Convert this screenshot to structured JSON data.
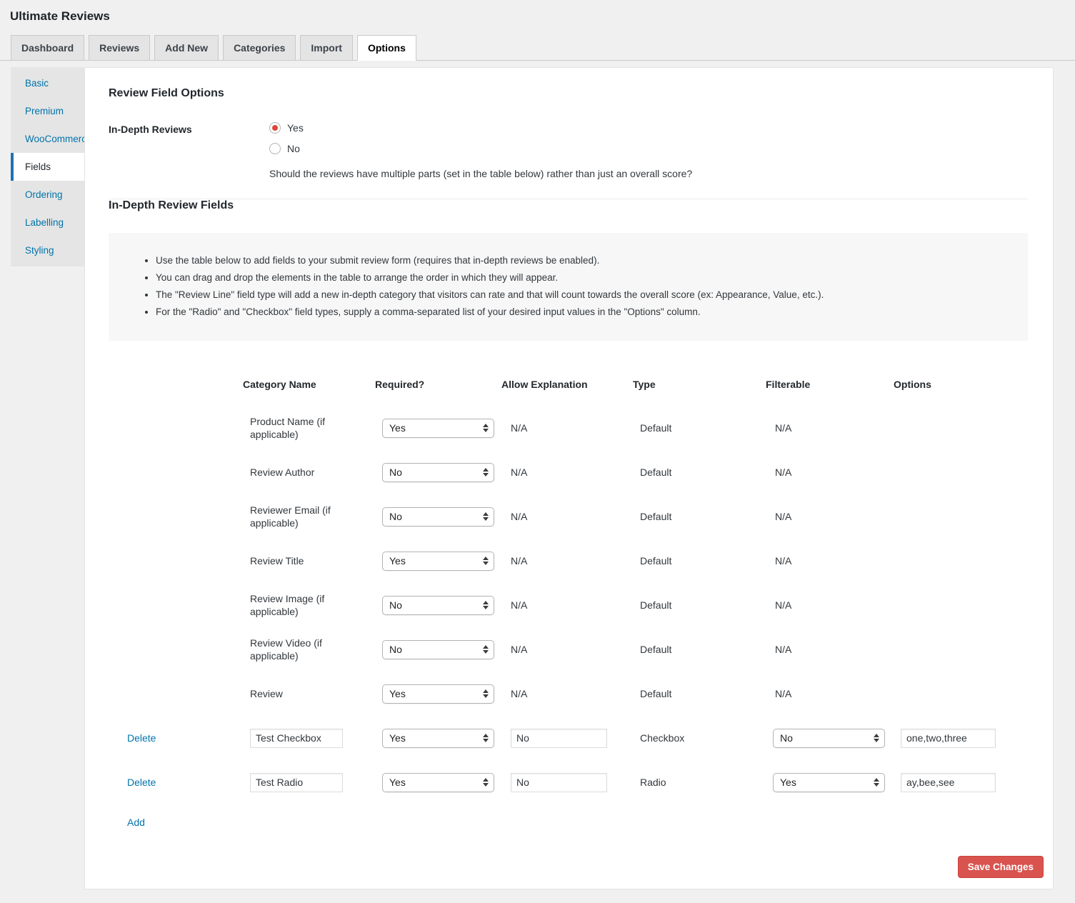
{
  "page_title": "Ultimate Reviews",
  "tabs": [
    {
      "label": "Dashboard",
      "active": false
    },
    {
      "label": "Reviews",
      "active": false
    },
    {
      "label": "Add New",
      "active": false
    },
    {
      "label": "Categories",
      "active": false
    },
    {
      "label": "Import",
      "active": false
    },
    {
      "label": "Options",
      "active": true
    }
  ],
  "sidebar": {
    "items": [
      {
        "label": "Basic",
        "active": false
      },
      {
        "label": "Premium",
        "active": false
      },
      {
        "label": "WooCommerce",
        "active": false
      },
      {
        "label": "Fields",
        "active": true
      },
      {
        "label": "Ordering",
        "active": false
      },
      {
        "label": "Labelling",
        "active": false
      },
      {
        "label": "Styling",
        "active": false
      }
    ]
  },
  "review_field_options": {
    "title": "Review Field Options",
    "in_depth_reviews": {
      "label": "In-Depth Reviews",
      "options": [
        "Yes",
        "No"
      ],
      "selected": "Yes",
      "description": "Should the reviews have multiple parts (set in the table below) rather than just an overall score?"
    }
  },
  "in_depth_review_fields": {
    "title": "In-Depth Review Fields",
    "notes": [
      "Use the table below to add fields to your submit review form (requires that in-depth reviews be enabled).",
      "You can drag and drop the elements in the table to arrange the order in which they will appear.",
      "The \"Review Line\" field type will add a new in-depth category that visitors can rate and that will count towards the overall score (ex: Appearance, Value, etc.).",
      "For the \"Radio\" and \"Checkbox\" field types, supply a comma-separated list of your desired input values in the \"Options\" column."
    ]
  },
  "table": {
    "headers": {
      "name": "Category Name",
      "required": "Required?",
      "allow": "Allow Explanation",
      "type": "Type",
      "filterable": "Filterable",
      "options": "Options"
    },
    "delete_label": "Delete",
    "add_label": "Add",
    "rows": [
      {
        "name": "Product Name (if applicable)",
        "required": "Yes",
        "allow": "N/A",
        "type": "Default",
        "filterable": "N/A",
        "options": ""
      },
      {
        "name": "Review Author",
        "required": "No",
        "allow": "N/A",
        "type": "Default",
        "filterable": "N/A",
        "options": ""
      },
      {
        "name": "Reviewer Email (if applicable)",
        "required": "No",
        "allow": "N/A",
        "type": "Default",
        "filterable": "N/A",
        "options": ""
      },
      {
        "name": "Review Title",
        "required": "Yes",
        "allow": "N/A",
        "type": "Default",
        "filterable": "N/A",
        "options": ""
      },
      {
        "name": "Review Image (if applicable)",
        "required": "No",
        "allow": "N/A",
        "type": "Default",
        "filterable": "N/A",
        "options": ""
      },
      {
        "name": "Review Video (if applicable)",
        "required": "No",
        "allow": "N/A",
        "type": "Default",
        "filterable": "N/A",
        "options": ""
      },
      {
        "name": "Review",
        "required": "Yes",
        "allow": "N/A",
        "type": "Default",
        "filterable": "N/A",
        "options": ""
      },
      {
        "deletable": true,
        "name": "Test Checkbox",
        "required": "Yes",
        "allow": "No",
        "type": "Checkbox",
        "filterable": "No",
        "options": "one,two,three"
      },
      {
        "deletable": true,
        "name": "Test Radio",
        "required": "Yes",
        "allow": "No",
        "type": "Radio",
        "filterable": "Yes",
        "options": "ay,bee,see"
      }
    ]
  },
  "save_button_label": "Save Changes",
  "colors": {
    "link": "#0073aa",
    "active_tab_marker": "#2271b1",
    "save_button": "#d9534f",
    "radio_selected": "#e0453a",
    "sidebar_bg": "#e5e5e5",
    "page_bg": "#f0f0f1"
  }
}
